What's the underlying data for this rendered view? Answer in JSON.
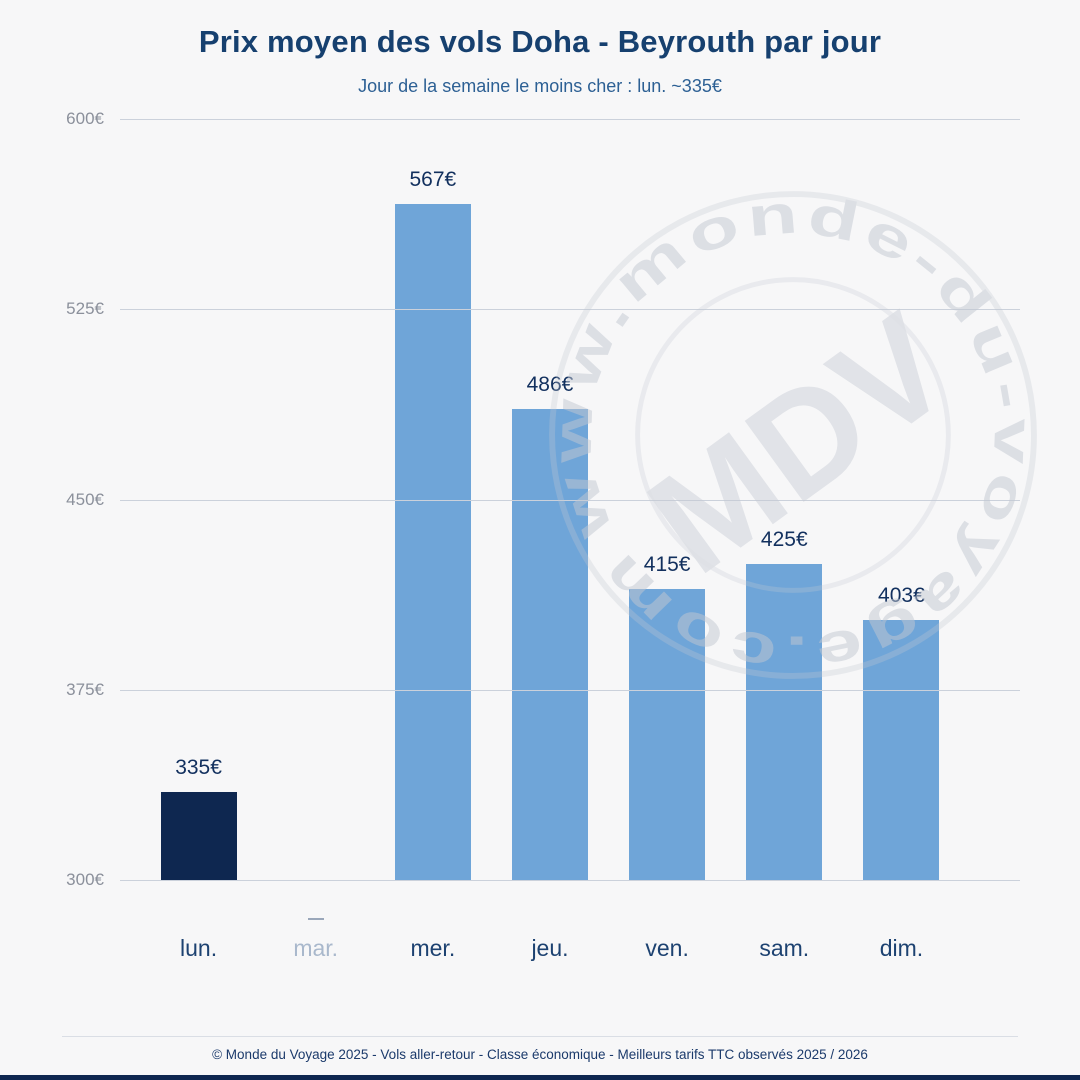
{
  "header": {
    "title": "Prix moyen des vols Doha - Beyrouth par jour",
    "subtitle": "Jour de la semaine le moins cher : lun. ~335€"
  },
  "chart_data": {
    "type": "bar",
    "title": "Prix moyen des vols Doha - Beyrouth par jour",
    "subtitle": "Jour de la semaine le moins cher : lun. ~335€",
    "categories": [
      "lun.",
      "mar.",
      "mer.",
      "jeu.",
      "ven.",
      "sam.",
      "dim."
    ],
    "values": [
      335,
      null,
      567,
      486,
      415,
      425,
      403
    ],
    "value_labels": [
      "335€",
      "–",
      "567€",
      "486€",
      "415€",
      "425€",
      "403€"
    ],
    "no_data_index": 1,
    "highlight_index": 0,
    "ylim": [
      300,
      600
    ],
    "yticks": [
      300,
      375,
      450,
      525,
      600
    ],
    "ytick_labels": [
      "300€",
      "375€",
      "450€",
      "525€",
      "600€"
    ],
    "grid": true,
    "legend": null,
    "xlabel": "",
    "ylabel": "",
    "colors": {
      "bar": "#6fa5d8",
      "bar_highlight": "#0e2750",
      "grid": "#cbd1db",
      "tick_label": "#8b909b",
      "x_label": "#1d4271",
      "x_label_no_data": "#a9b8cc",
      "value_label": "#12305e",
      "title": "#16406f",
      "subtitle": "#2d6094",
      "background": "#f7f7f8"
    }
  },
  "watermark": {
    "ring_text": "www.monde-du-voyage.com",
    "center_text": "MDV"
  },
  "footer": {
    "text": "© Monde du Voyage 2025 - Vols aller-retour - Classe économique - Meilleurs tarifs TTC observés 2025 / 2026"
  }
}
